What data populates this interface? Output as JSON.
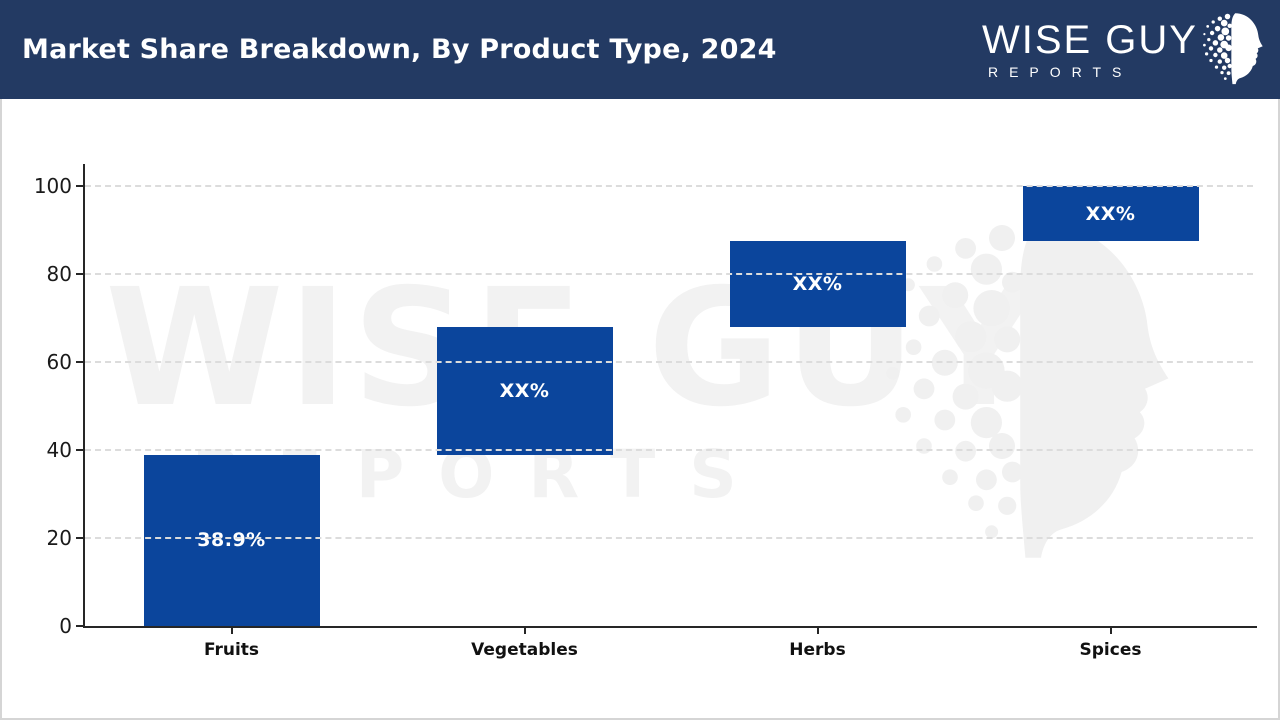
{
  "header": {
    "title": "Market Share Breakdown, By Product Type, 2024",
    "logo": {
      "line1": "WISE GUY",
      "line2": "REPORTS"
    },
    "bg_color": "#233a63"
  },
  "watermark": {
    "line1": "WISE GUY",
    "line2": "REPORTS"
  },
  "chart_data": {
    "type": "bar",
    "variant": "floating-stacked-percentage",
    "title": "Market Share Breakdown, By Product Type, 2024",
    "xlabel": "",
    "ylabel": "",
    "categories": [
      "Fruits",
      "Vegetables",
      "Herbs",
      "Spices"
    ],
    "bars": [
      {
        "category": "Fruits",
        "start": 0,
        "end": 38.9,
        "label": "38.9%"
      },
      {
        "category": "Vegetables",
        "start": 38.9,
        "end": 68.0,
        "label": "XX%"
      },
      {
        "category": "Herbs",
        "start": 68.0,
        "end": 87.4,
        "label": "XX%"
      },
      {
        "category": "Spices",
        "start": 87.4,
        "end": 100,
        "label": "XX%"
      }
    ],
    "yticks": [
      0,
      20,
      40,
      60,
      80,
      100
    ],
    "ylim": [
      0,
      105
    ],
    "grid": "dashed-horizontal",
    "grid_color": "#dcdcdc",
    "bar_color": "#0b459c",
    "bar_label_color": "#ffffff",
    "legend": "none"
  }
}
